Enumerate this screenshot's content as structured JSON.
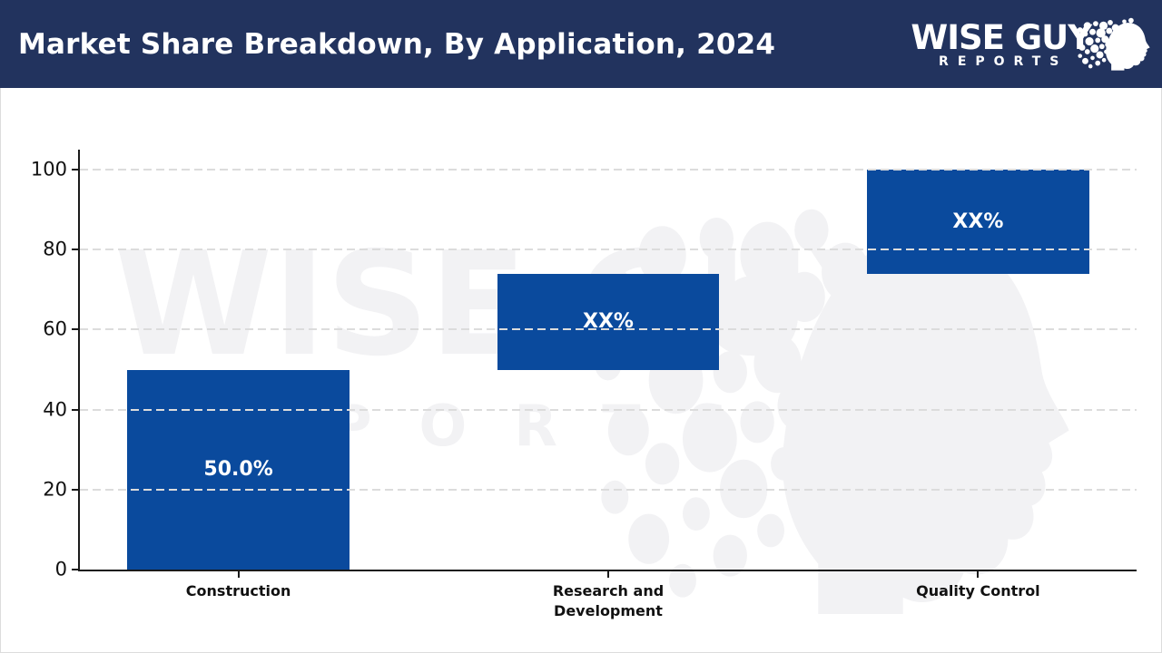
{
  "header": {
    "title": "Market Share Breakdown, By Application, 2024",
    "logo": {
      "line1": "WISE GUY",
      "line2": "REPORTS"
    }
  },
  "watermark": {
    "line1": "WISE GUY",
    "line2": "REPORTS"
  },
  "chart_data": {
    "type": "bar",
    "subtype": "stacked-waterfall",
    "title": "Market Share Breakdown, By Application, 2024",
    "categories": [
      "Construction",
      "Research and Development",
      "Quality Control"
    ],
    "bars": [
      {
        "category": "Construction",
        "category_display": "Construction",
        "base": 0,
        "value": 50.0,
        "label": "50.0%"
      },
      {
        "category": "Research and Development",
        "category_display": "Research and\nDevelopment",
        "base": 50.0,
        "value": 24.0,
        "label": "XX%"
      },
      {
        "category": "Quality Control",
        "category_display": "Quality Control",
        "base": 74.0,
        "value": 26.0,
        "label": "XX%"
      }
    ],
    "xlabel": "",
    "ylabel": "",
    "ylim": [
      0,
      105
    ],
    "yticks": [
      0,
      20,
      40,
      60,
      80,
      100
    ],
    "grid": "horizontal-dashed",
    "legend": false,
    "colors": {
      "bar": "#0a4a9d",
      "grid": "#dcdcdc",
      "axis": "#1a1a1a",
      "bar_label": "#ffffff",
      "header_bg": "#22335e",
      "watermark": "#f2f2f4"
    }
  }
}
